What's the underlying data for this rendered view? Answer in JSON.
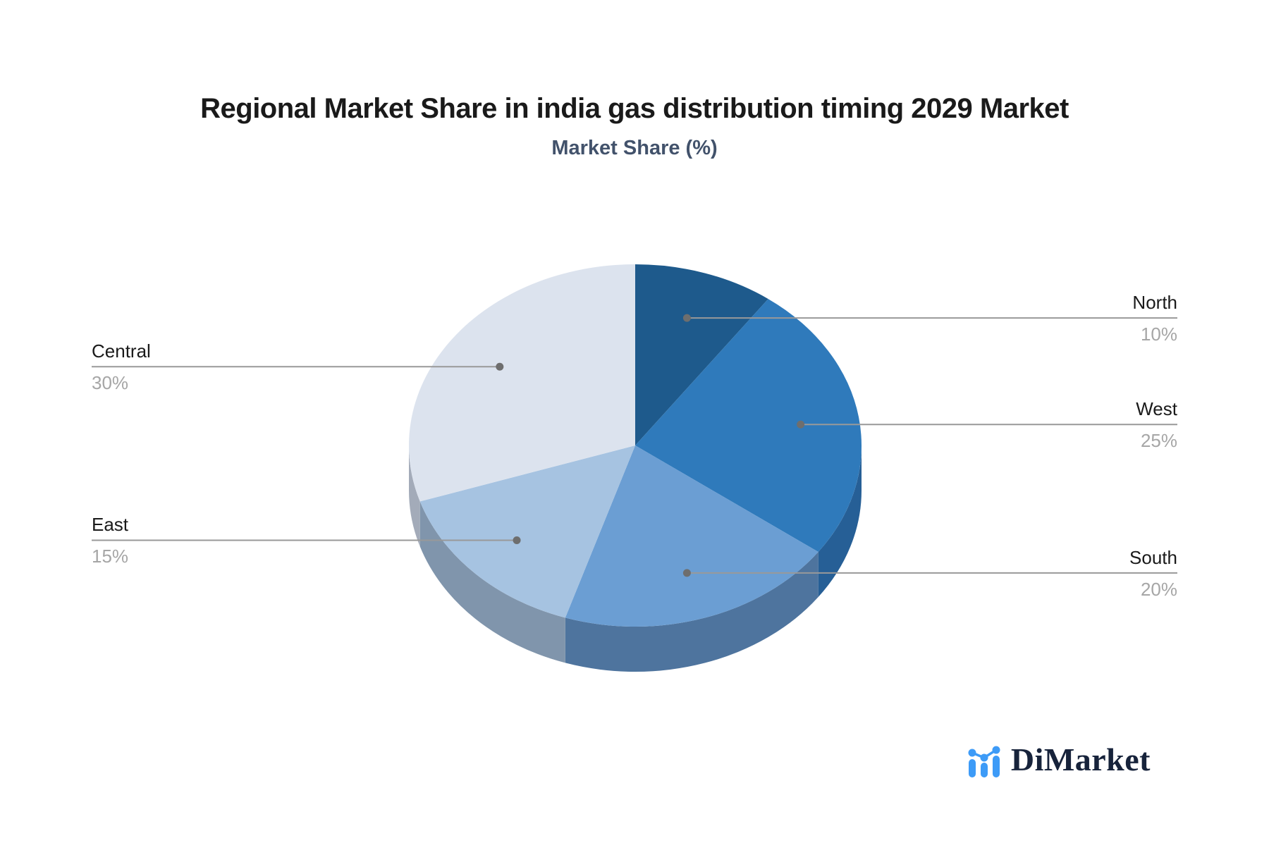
{
  "header": {
    "title": "Regional Market Share in india gas distribution timing 2029 Market",
    "subtitle": "Market Share (%)"
  },
  "chart_data": {
    "type": "pie",
    "title": "Regional Market Share in india gas distribution timing 2029 Market",
    "subtitle": "Market Share (%)",
    "unit": "%",
    "effect": "3d",
    "start_angle_deg": 0,
    "direction": "clockwise",
    "legend_position": "callout-labels",
    "slices": [
      {
        "label": "North",
        "value": 10,
        "display": "10%",
        "color": "#1e5a8c",
        "side_color": "#1a4d79",
        "label_side": "right"
      },
      {
        "label": "West",
        "value": 25,
        "display": "25%",
        "color": "#2f7abb",
        "side_color": "#265f96",
        "label_side": "right"
      },
      {
        "label": "South",
        "value": 20,
        "display": "20%",
        "color": "#6b9ed3",
        "side_color": "#4e749e",
        "label_side": "right"
      },
      {
        "label": "East",
        "value": 15,
        "display": "15%",
        "color": "#a6c3e1",
        "side_color": "#8095ac",
        "label_side": "left"
      },
      {
        "label": "Central",
        "value": 30,
        "display": "30%",
        "color": "#dce3ee",
        "side_color": "#a3abb9",
        "label_side": "left"
      }
    ]
  },
  "callout_style": {
    "line_color": "#999999",
    "dot_color": "#6e6e6e",
    "name_color": "#1a1a1a",
    "value_color": "#a6a6a6"
  },
  "logo": {
    "text": "DiMarket",
    "icon": "bar-line-chart-icon",
    "icon_color": "#3d9bf7",
    "text_color": "#17233b"
  }
}
